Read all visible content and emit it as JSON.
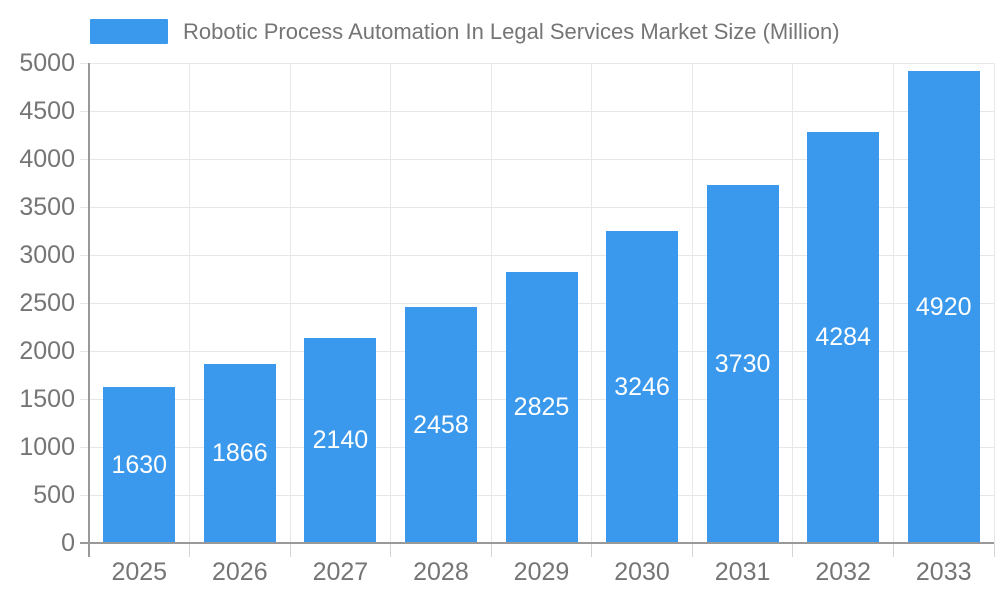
{
  "legend": {
    "swatch_color": "#3a99ec",
    "label": "Robotic Process Automation In Legal Services Market Size (Million)"
  },
  "chart_data": {
    "type": "bar",
    "title": "Robotic Process Automation In Legal Services Market Size (Million)",
    "categories": [
      "2025",
      "2026",
      "2027",
      "2028",
      "2029",
      "2030",
      "2031",
      "2032",
      "2033"
    ],
    "values": [
      1630,
      1866,
      2140,
      2458,
      2825,
      3246,
      3730,
      4284,
      4920
    ],
    "xlabel": "",
    "ylabel": "",
    "ylim": [
      0,
      5000
    ],
    "ytick_step": 500,
    "yticks": [
      0,
      500,
      1000,
      1500,
      2000,
      2500,
      3000,
      3500,
      4000,
      4500,
      5000
    ],
    "grid": true,
    "legend_position": "top",
    "value_labels": "inside-center",
    "colors": {
      "bar": "#3a99ec",
      "value_label": "#ffffff",
      "axis_text": "#757575",
      "grid_line": "#e7e7e7",
      "tick": "#d4d4d4",
      "axis_line": "#999999",
      "background": "#ffffff"
    }
  }
}
